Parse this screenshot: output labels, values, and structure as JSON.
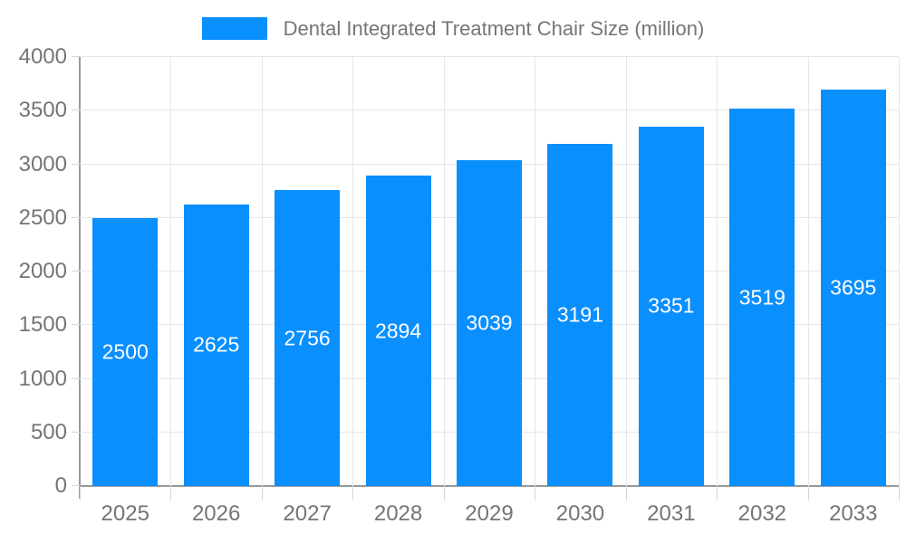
{
  "legend": {
    "label": "Dental Integrated Treatment Chair Size (million)"
  },
  "chart_data": {
    "type": "bar",
    "title": "Dental Integrated Treatment Chair Size (million)",
    "series_name": "Dental Integrated Treatment Chair Size (million)",
    "categories": [
      "2025",
      "2026",
      "2027",
      "2028",
      "2029",
      "2030",
      "2031",
      "2032",
      "2033"
    ],
    "values": [
      2500,
      2625,
      2756,
      2894,
      3039,
      3191,
      3351,
      3519,
      3695
    ],
    "xlabel": "",
    "ylabel": "",
    "ylim": [
      0,
      4000
    ],
    "yticks": [
      0,
      500,
      1000,
      1500,
      2000,
      2500,
      3000,
      3500,
      4000
    ],
    "grid": true,
    "legend_position": "top-center",
    "value_label_position": "inside-center",
    "colors": {
      "bar": "#0A8FFF",
      "grid_line": "#E6E6E6",
      "axis_line": "#999999",
      "tick_line": "#D6D6D6",
      "axis_text": "#757575",
      "legend_text": "#757575",
      "value_label_text": "#FFFFFF",
      "background": "#FFFFFF"
    }
  }
}
